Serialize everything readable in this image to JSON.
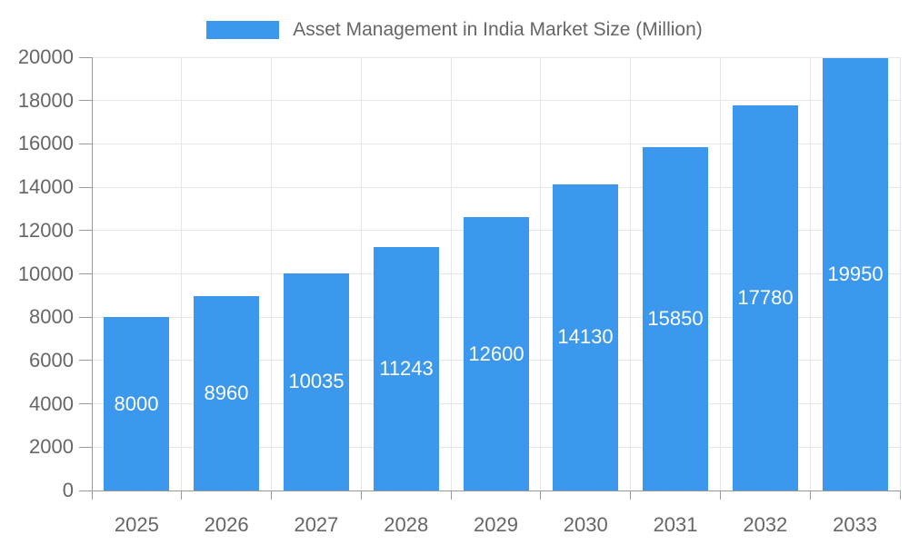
{
  "chart_data": {
    "type": "bar",
    "title": "Asset Management in India Market Size (Million)",
    "categories": [
      "2025",
      "2026",
      "2027",
      "2028",
      "2029",
      "2030",
      "2031",
      "2032",
      "2033"
    ],
    "values": [
      8000,
      8960,
      10035,
      11243,
      12600,
      14130,
      15850,
      17780,
      19950
    ],
    "xlabel": "",
    "ylabel": "",
    "ylim": [
      0,
      20000
    ],
    "ytick_step": 2000,
    "grid": true,
    "legend_position": "top-center",
    "value_labels": "white, centered inside bars",
    "colors": {
      "bar": "#3b98ec",
      "grid": "#e6e6e6",
      "axis": "#999999",
      "tick_label": "#666666",
      "value_label": "#ffffff",
      "background": "#ffffff"
    }
  }
}
